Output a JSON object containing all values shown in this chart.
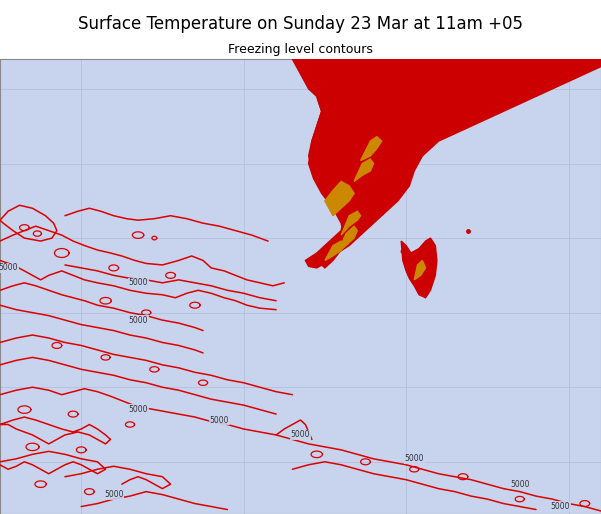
{
  "title": "Surface Temperature on Sunday 23 Mar at 11am +05",
  "subtitle": "Freezing level contours",
  "title_fontsize": 12,
  "subtitle_fontsize": 9,
  "ocean_color": "#c8d4ee",
  "land_red": "#cc0000",
  "land_orange": "#cc8800",
  "contour_color": "#dd0000",
  "grid_color": "#b0bcd8",
  "white_bg": "#ffffff",
  "fig_width": 6.01,
  "fig_height": 5.14,
  "dpi": 100,
  "lon_min": 55.0,
  "lon_max": 92.0,
  "lat_min": -8.5,
  "lat_max": 22.0
}
